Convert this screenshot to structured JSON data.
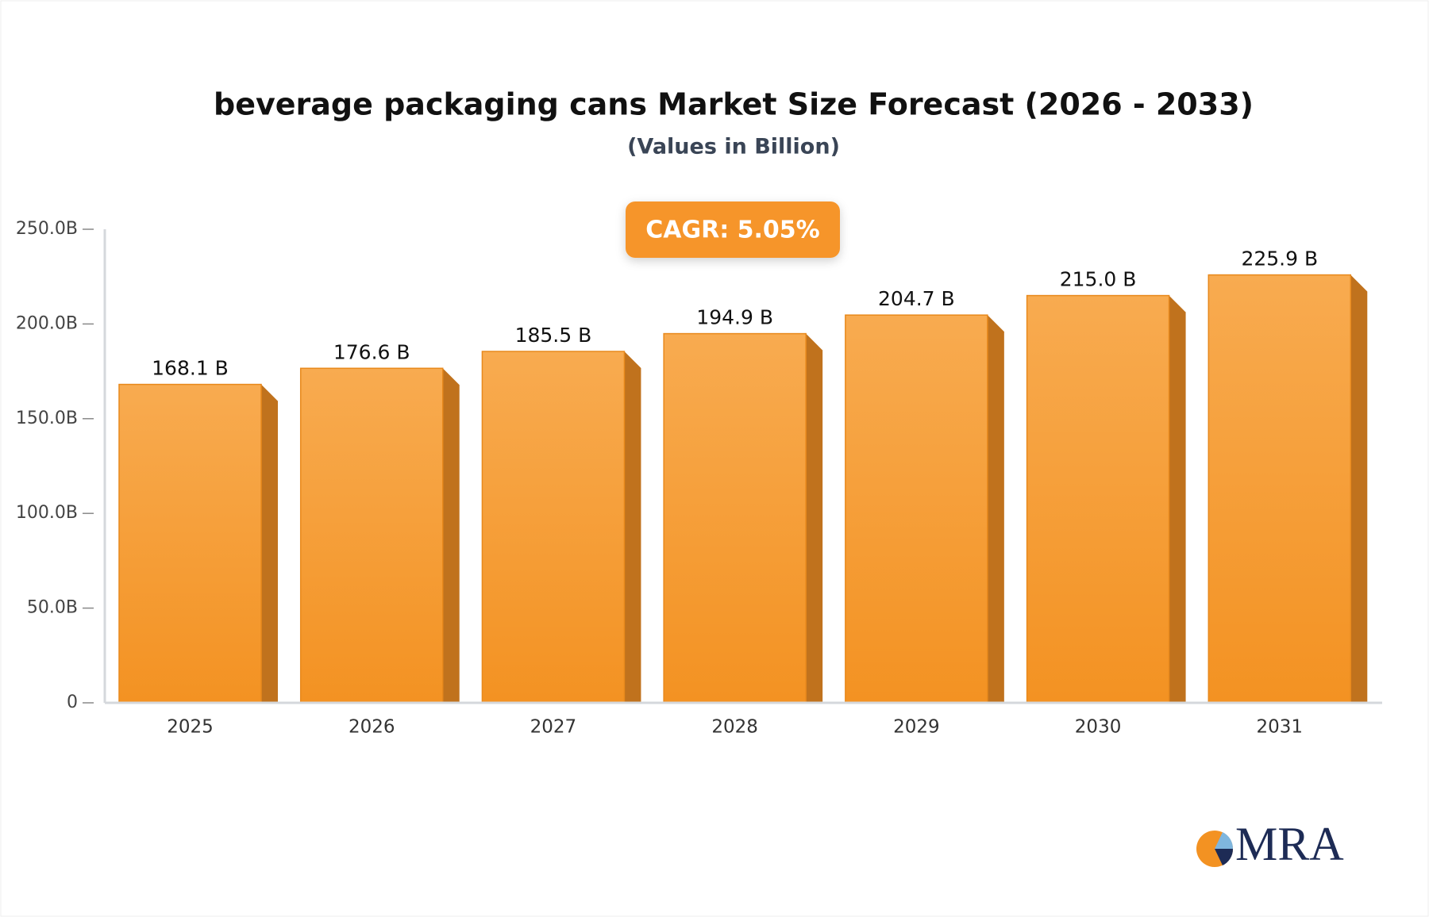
{
  "chart_data": {
    "type": "bar",
    "title": "beverage packaging cans Market Size Forecast (2026 - 2033)",
    "subtitle": "(Values in Billion)",
    "annotation": "CAGR: 5.05%",
    "categories": [
      "2025",
      "2026",
      "2027",
      "2028",
      "2029",
      "2030",
      "2031"
    ],
    "values": [
      168.1,
      176.6,
      185.5,
      194.9,
      204.7,
      215.0,
      225.9
    ],
    "value_labels": [
      "168.1 B",
      "176.6 B",
      "185.5 B",
      "194.9 B",
      "204.7 B",
      "215.0 B",
      "225.9 B"
    ],
    "color": "#f6a03a",
    "ylim": [
      0,
      250
    ],
    "yticks": [
      0,
      {
        "value": 50,
        "label": "50.0B"
      },
      {
        "value": 100,
        "label": "100.0B"
      },
      {
        "value": 150,
        "label": "150.0B"
      },
      {
        "value": 200,
        "label": "200.0B"
      },
      {
        "value": 250,
        "label": "250.0B"
      }
    ],
    "grid": false
  },
  "logo": "MRA"
}
